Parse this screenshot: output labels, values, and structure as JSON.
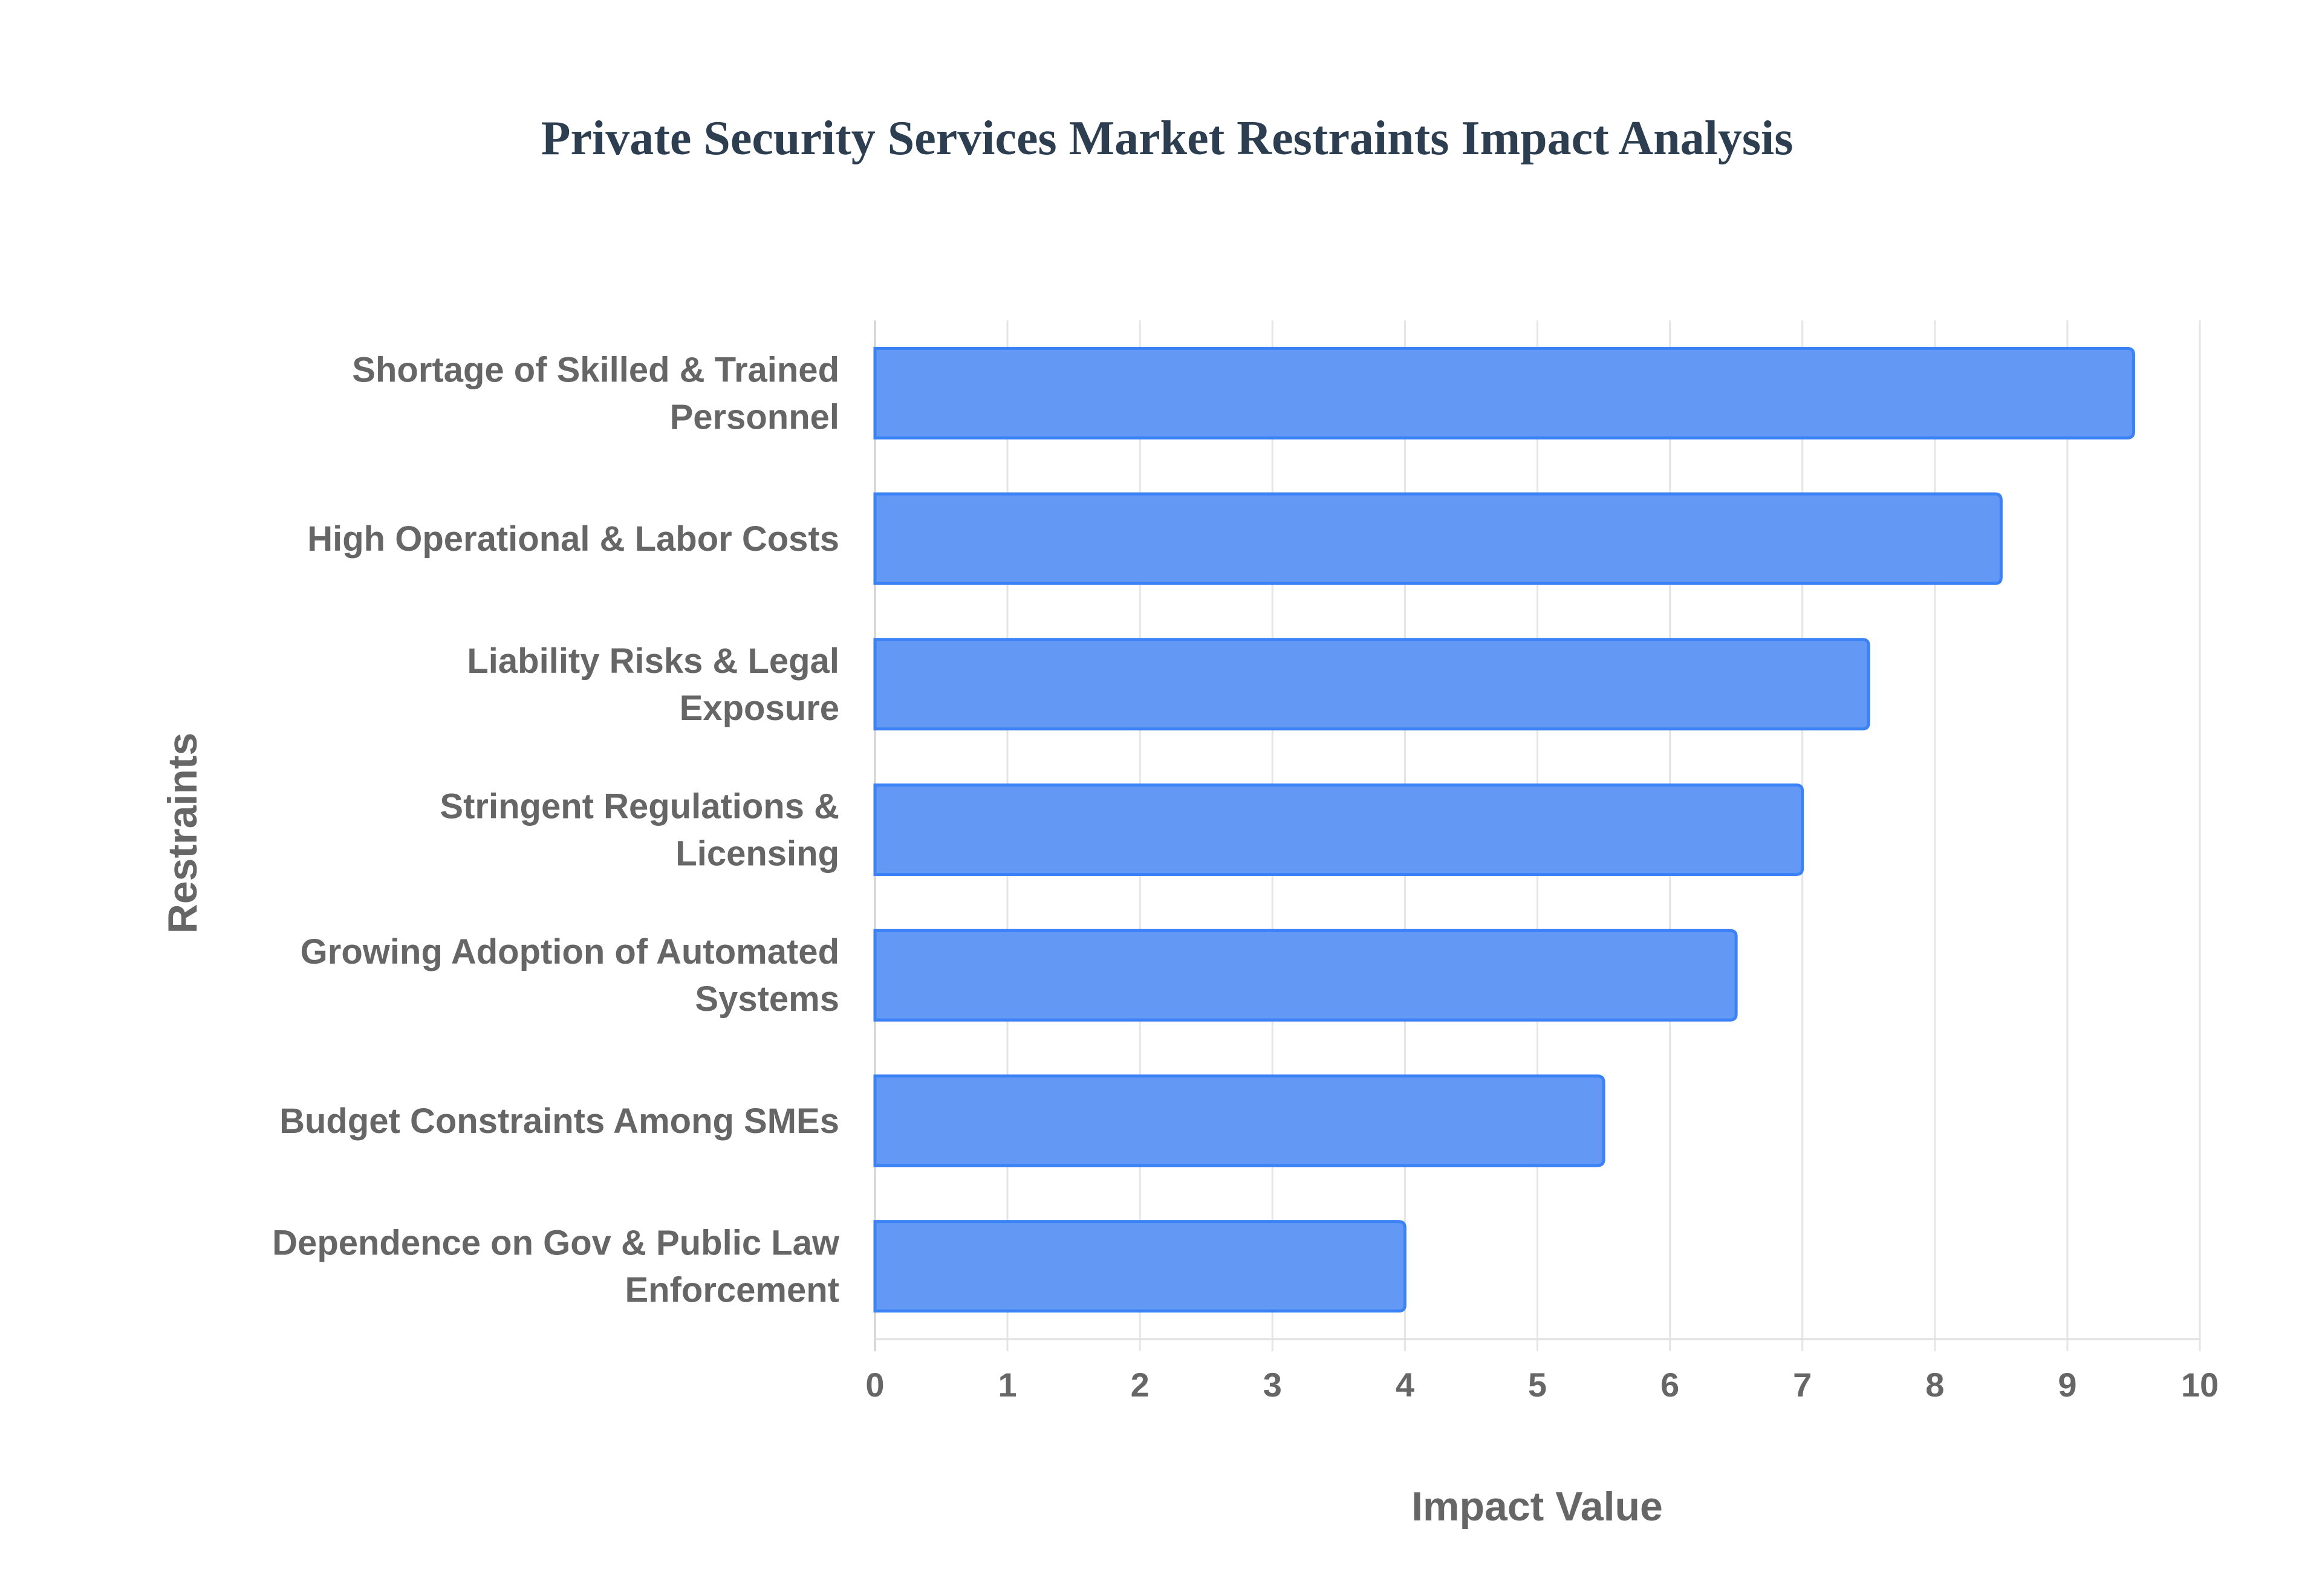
{
  "chart_data": {
    "type": "bar",
    "orientation": "horizontal",
    "title": "Private Security Services Market Restraints Impact Analysis",
    "xlabel": "Impact Value",
    "ylabel": "Restraints",
    "categories": [
      [
        "Shortage of Skilled & Trained",
        "Personnel"
      ],
      [
        "High Operational & Labor Costs"
      ],
      [
        "Liability Risks & Legal",
        "Exposure"
      ],
      [
        "Stringent Regulations &",
        "Licensing"
      ],
      [
        "Growing Adoption of Automated",
        "Systems"
      ],
      [
        "Budget Constraints Among SMEs"
      ],
      [
        "Dependence on Gov & Public Law",
        "Enforcement"
      ]
    ],
    "values": [
      9.5,
      8.5,
      7.5,
      7,
      6.5,
      5.5,
      4
    ],
    "xlim": [
      0,
      10
    ],
    "xticks": [
      "0",
      "1",
      "2",
      "3",
      "4",
      "5",
      "6",
      "7",
      "8",
      "9",
      "10"
    ],
    "grid": true,
    "legend": "none",
    "colors": {
      "bar_fill": "#6399f5",
      "bar_border": "#3b82f6",
      "grid": "#e5e5e5"
    }
  }
}
